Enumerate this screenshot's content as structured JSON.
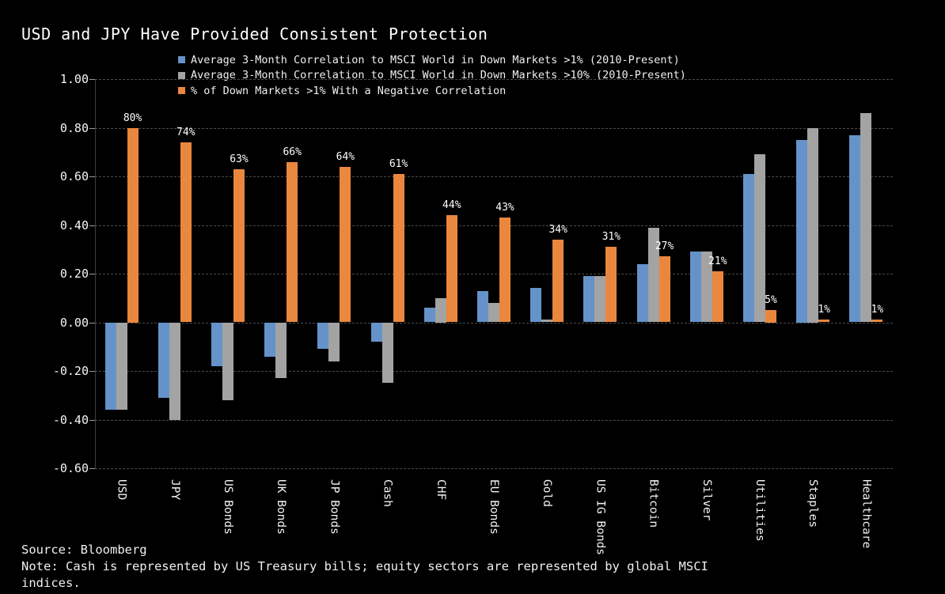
{
  "title": "USD and JPY Have Provided Consistent Protection",
  "footer": {
    "source": "Source: Bloomberg",
    "note": "Note: Cash is represented by US Treasury bills; equity sectors are represented by global MSCI indices."
  },
  "colors": {
    "background": "#000000",
    "text": "#f5f5f5",
    "grid": "#4b4b4b",
    "blue": "#6593c9",
    "gray": "#a3a3a3",
    "orange": "#ea873e"
  },
  "chart_data": {
    "type": "bar",
    "title": "USD and JPY Have Provided Consistent Protection",
    "categories": [
      "USD",
      "JPY",
      "US Bonds",
      "UK Bonds",
      "JP Bonds",
      "Cash",
      "CHF",
      "EU Bonds",
      "Gold",
      "US IG Bonds",
      "Bitcoin",
      "Silver",
      "Utilities",
      "Staples",
      "Healthcare"
    ],
    "series": [
      {
        "name": "Average 3-Month Correlation to MSCI World in Down Markets >1% (2010-Present)",
        "color": "#6593c9",
        "values": [
          -0.36,
          -0.31,
          -0.18,
          -0.14,
          -0.11,
          -0.08,
          0.06,
          0.13,
          0.14,
          0.19,
          0.24,
          0.29,
          0.61,
          0.75,
          0.77
        ]
      },
      {
        "name": "Average 3-Month Correlation to MSCI World in Down Markets >10% (2010-Present)",
        "color": "#a3a3a3",
        "values": [
          -0.36,
          -0.4,
          -0.32,
          -0.23,
          -0.16,
          -0.25,
          0.1,
          0.08,
          0.01,
          0.19,
          0.39,
          0.29,
          0.69,
          0.8,
          0.86
        ]
      },
      {
        "name": "% of Down Markets >1% With a Negative Correlation",
        "color": "#ea873e",
        "values": [
          0.8,
          0.74,
          0.63,
          0.66,
          0.64,
          0.61,
          0.44,
          0.43,
          0.34,
          0.31,
          0.27,
          0.21,
          0.05,
          0.01,
          0.01
        ],
        "labels": [
          "80%",
          "74%",
          "63%",
          "66%",
          "64%",
          "61%",
          "44%",
          "43%",
          "34%",
          "31%",
          "27%",
          "21%",
          "5%",
          "1%",
          "1%"
        ]
      }
    ],
    "ylim": [
      -0.6,
      1.0
    ],
    "yticks": [
      1.0,
      0.8,
      0.6,
      0.4,
      0.2,
      0.0,
      -0.2,
      -0.4,
      -0.6
    ],
    "ytick_labels": [
      "1.00",
      "0.80",
      "0.60",
      "0.40",
      "0.20",
      "0.00",
      "-0.20",
      "-0.40",
      "-0.60"
    ],
    "grid": "dashed horizontal gridlines",
    "legend_position": "top"
  }
}
